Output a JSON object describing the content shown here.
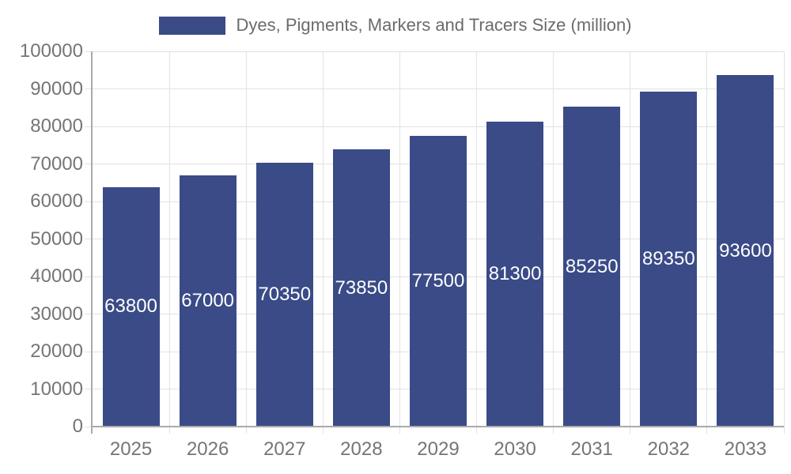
{
  "chart_data": {
    "type": "bar",
    "legend": {
      "label": "Dyes, Pigments, Markers and Tracers Size (million)",
      "position": "top"
    },
    "categories": [
      "2025",
      "2026",
      "2027",
      "2028",
      "2029",
      "2030",
      "2031",
      "2032",
      "2033"
    ],
    "values": [
      63800,
      67000,
      70350,
      73850,
      77500,
      81300,
      85250,
      89350,
      93600
    ],
    "xlabel": "",
    "ylabel": "",
    "ylim": [
      0,
      100000
    ],
    "ytick_step": 10000,
    "ytick_labels": [
      "0",
      "10000",
      "20000",
      "30000",
      "40000",
      "50000",
      "60000",
      "70000",
      "80000",
      "90000",
      "100000"
    ],
    "grid": true,
    "bar_value_labels_visible": true,
    "colors": {
      "bar": "#3A4B87",
      "value_label": "#FFFFFF",
      "axis_label": "#757575",
      "legend_text": "#6B6B6B",
      "gridline": "#E2E2E2",
      "axis_line": "#AAAAAA",
      "background": "#FFFFFF"
    }
  }
}
